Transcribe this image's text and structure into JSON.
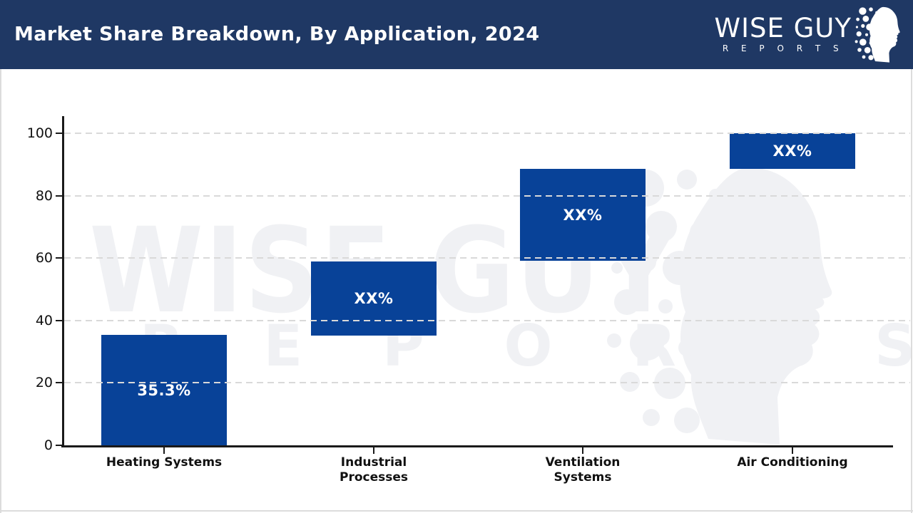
{
  "header": {
    "title": "Market Share Breakdown, By Application, 2024",
    "logo": {
      "wordmark": "WISE GUY",
      "subtext": "R E P O R T S"
    }
  },
  "watermark": {
    "line1": "WISE GUY",
    "line2": "R E P O R T S"
  },
  "chart_data": {
    "type": "bar",
    "subtype": "waterfall-stacked-segments",
    "title": "Market Share Breakdown, By Application, 2024",
    "unit": "percent",
    "categories": [
      "Heating Systems",
      "Industrial\nProcesses",
      "Ventilation\nSystems",
      "Air Conditioning"
    ],
    "segments": [
      {
        "category": "Heating Systems",
        "start": 0,
        "end": 35.3,
        "value_label": "35.3%"
      },
      {
        "category": "Industrial\nProcesses",
        "start": 35.3,
        "end": 59,
        "value_label": "XX%"
      },
      {
        "category": "Ventilation\nSystems",
        "start": 59,
        "end": 88.5,
        "value_label": "XX%"
      },
      {
        "category": "Air Conditioning",
        "start": 88.5,
        "end": 100,
        "value_label": "XX%"
      }
    ],
    "yticks": [
      0,
      20,
      40,
      60,
      80,
      100
    ],
    "ylim": [
      0,
      105
    ],
    "xlabel": "",
    "ylabel": "",
    "grid": "dashed-horizontal-over-bars",
    "legend": "none",
    "colors": {
      "bar": "#084298",
      "bar_label": "#ffffff",
      "grid": "#d9d9d9",
      "axis": "#1a1a1a",
      "header_bg": "#1f3864",
      "header_text": "#ffffff",
      "watermark": "#f0f1f4"
    }
  }
}
